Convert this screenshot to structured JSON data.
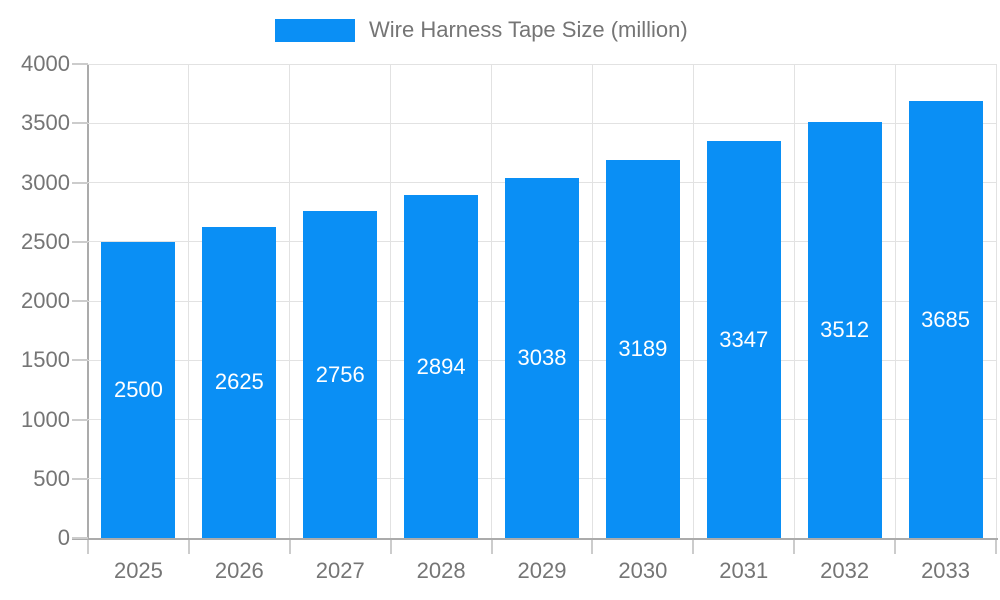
{
  "legend": {
    "label": "Wire Harness Tape Size (million)",
    "swatch_color": "#0a8ff5"
  },
  "colors": {
    "bar": "#0a8ff5",
    "grid": "#e2e2e2",
    "axis": "#ababab",
    "tick": "#cccccc",
    "text": "#757575",
    "bar_label": "#ffffff",
    "background": "#ffffff"
  },
  "chart_data": {
    "type": "bar",
    "title": "Wire Harness Tape Size (million)",
    "categories": [
      "2025",
      "2026",
      "2027",
      "2028",
      "2029",
      "2030",
      "2031",
      "2032",
      "2033"
    ],
    "values": [
      2500,
      2625,
      2756,
      2894,
      3038,
      3189,
      3347,
      3512,
      3685
    ],
    "xlabel": "",
    "ylabel": "",
    "ylim": [
      0,
      4000
    ],
    "yticks": [
      0,
      500,
      1000,
      1500,
      2000,
      2500,
      3000,
      3500,
      4000
    ],
    "grid": true,
    "legend_position": "top",
    "bar_labels": true
  }
}
